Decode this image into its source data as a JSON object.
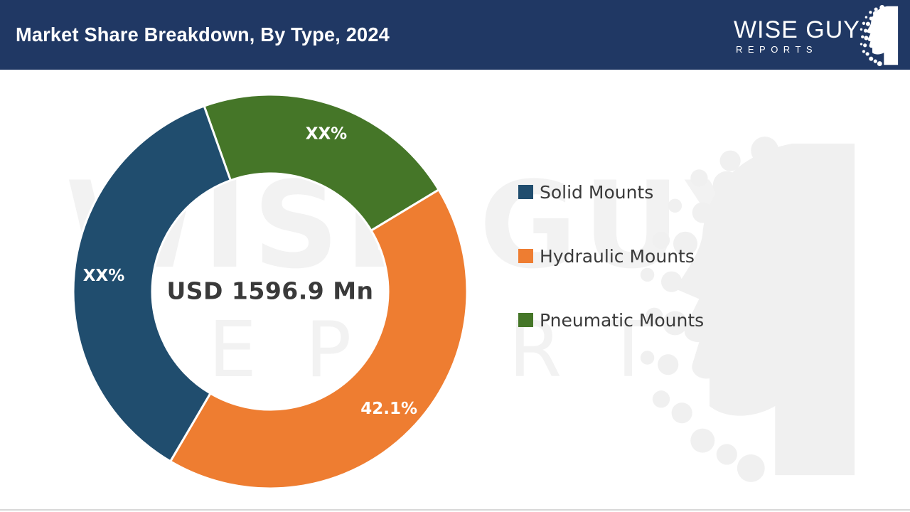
{
  "header": {
    "title": "Market Share Breakdown, By Type, 2024",
    "logo": {
      "line1": "WISE GUY",
      "line2": "REPORTS"
    }
  },
  "watermark": {
    "line1": "WISE GUY",
    "line2": "REPORTS"
  },
  "chart_data": {
    "type": "pie",
    "subtype": "donut",
    "title": "Market Share Breakdown, By Type, 2024",
    "center_label": "USD 1596.9 Mn",
    "start_angle_deg": -19.6,
    "legend_position": "right",
    "slices": [
      {
        "name": "Pneumatic Mounts",
        "value_pct": 21.8,
        "displayed_label": "XX%",
        "color": "#457628"
      },
      {
        "name": "Hydraulic Mounts",
        "value_pct": 42.1,
        "displayed_label": "42.1%",
        "color": "#EE7D31"
      },
      {
        "name": "Solid Mounts",
        "value_pct": 36.1,
        "displayed_label": "XX%",
        "color": "#204D6E"
      }
    ]
  },
  "legend": {
    "items": [
      {
        "label": "Solid Mounts",
        "color": "#204D6E"
      },
      {
        "label": "Hydraulic Mounts",
        "color": "#EE7D31"
      },
      {
        "label": "Pneumatic Mounts",
        "color": "#457628"
      }
    ]
  },
  "colors": {
    "header_bg": "#203864",
    "page_bg": "#FFFFFF",
    "text_dark": "#3A3A3A",
    "watermark": "#F2F2F2",
    "border": "#D8D8D8"
  }
}
